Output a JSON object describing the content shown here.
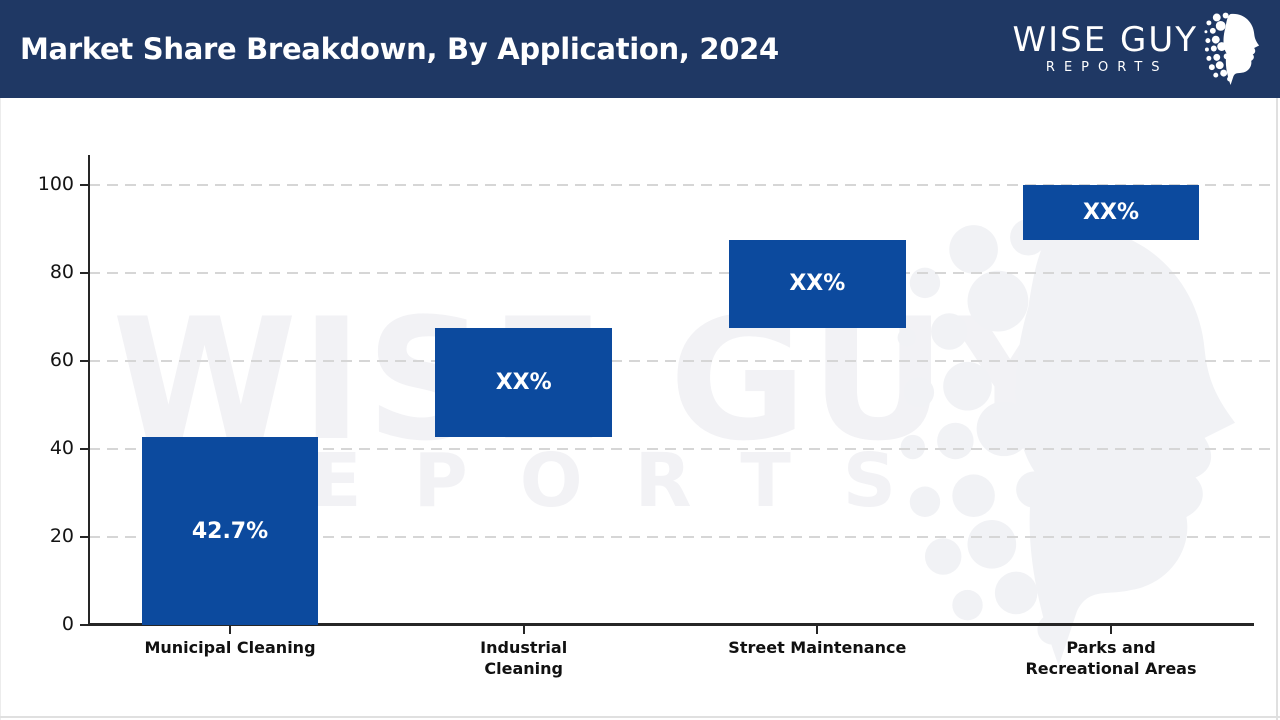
{
  "header": {
    "title": "Market Share Breakdown, By Application, 2024",
    "logo": {
      "line1": "WISE GUY",
      "line2": "REPORTS"
    }
  },
  "watermark": {
    "line1": "WISE GUY",
    "line2": "REPORTS"
  },
  "palette": {
    "header_bg": "#1f3864",
    "bar_blue": "#0c4a9e",
    "grid_gray": "#d6d6d6",
    "axis_black": "#262626",
    "watermark_gray": "#f2f2f5",
    "label_white": "#ffffff"
  },
  "chart_data": {
    "type": "bar",
    "subtype": "waterfall",
    "title": "Market Share Breakdown, By Application, 2024",
    "categories": [
      "Municipal Cleaning",
      "Industrial Cleaning",
      "Street Maintenance",
      "Parks and Recreational Areas"
    ],
    "category_label_lines": [
      [
        "Municipal Cleaning"
      ],
      [
        "Industrial",
        "Cleaning"
      ],
      [
        "Street Maintenance"
      ],
      [
        "Parks and",
        "Recreational Areas"
      ]
    ],
    "segments": [
      {
        "category": "Municipal Cleaning",
        "start": 0,
        "end": 42.7,
        "value_shown": "42.7%",
        "label": "42.7%"
      },
      {
        "category": "Industrial Cleaning",
        "start": 42.7,
        "end": 67.4,
        "value_shown": "masked",
        "label": "XX%"
      },
      {
        "category": "Street Maintenance",
        "start": 67.4,
        "end": 87.6,
        "value_shown": "masked",
        "label": "XX%"
      },
      {
        "category": "Parks and Recreational Areas",
        "start": 87.6,
        "end": 100,
        "value_shown": "masked",
        "label": "XX%"
      }
    ],
    "xlabel": "",
    "ylabel": "",
    "ylim": [
      0,
      100
    ],
    "yticks": [
      0,
      20,
      40,
      60,
      80,
      100
    ],
    "grid": "horizontal dashed",
    "legend": "none",
    "bar_color": "#0c4a9e",
    "value_label_color": "#ffffff",
    "value_label_position": "inside-center"
  }
}
